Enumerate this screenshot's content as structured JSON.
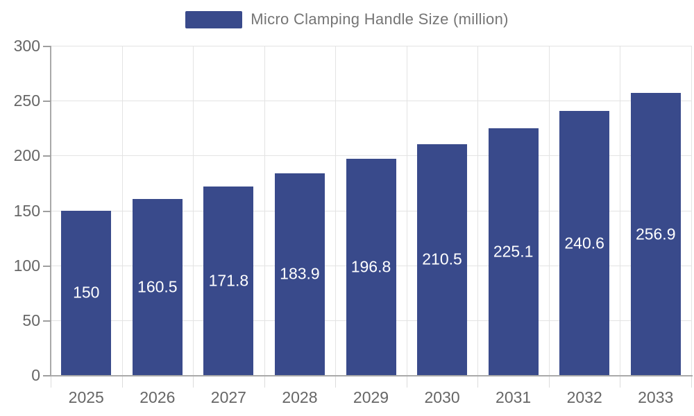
{
  "chart_data": {
    "type": "bar",
    "title": "Micro Clamping Handle Size (million)",
    "legend": {
      "position": "top",
      "items": [
        "Micro Clamping Handle Size (million)"
      ]
    },
    "categories": [
      "2025",
      "2026",
      "2027",
      "2028",
      "2029",
      "2030",
      "2031",
      "2032",
      "2033"
    ],
    "values": [
      150,
      160.5,
      171.8,
      183.9,
      196.8,
      210.5,
      225.1,
      240.6,
      256.9
    ],
    "xlabel": "",
    "ylabel": "",
    "ylim": [
      0,
      300
    ],
    "yticks": [
      0,
      50,
      100,
      150,
      200,
      250,
      300
    ],
    "grid": true,
    "bar_value_labels_visible": true,
    "colors": {
      "bar": "#394A8B",
      "bar_label_text": "#ffffff",
      "legend_text": "#757575",
      "axis_text": "#666666",
      "gridline": "#e3e3e3",
      "axis_line": "#a9a9a9",
      "background": "#ffffff"
    }
  }
}
